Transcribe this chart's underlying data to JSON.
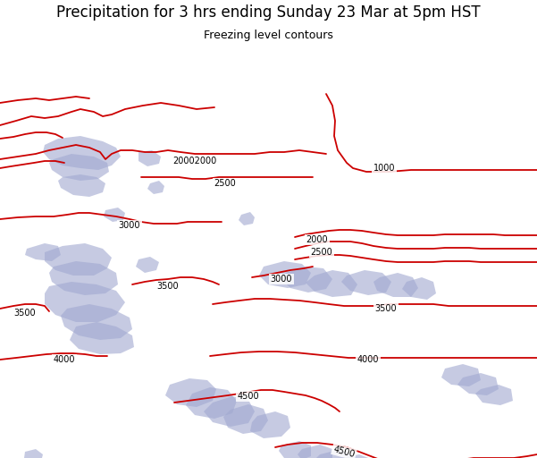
{
  "title": "Precipitation for 3 hrs ending Sunday 23 Mar at 5pm HST",
  "subtitle": "Freezing level contours",
  "title_bg": "#ffffff",
  "map_bg": "#c8cce8",
  "precip_color": "#a0a8d0",
  "contour_color": "#cc0000",
  "contour_lw": 1.3,
  "label_fs": 7,
  "title_fs": 12,
  "subtitle_fs": 9
}
